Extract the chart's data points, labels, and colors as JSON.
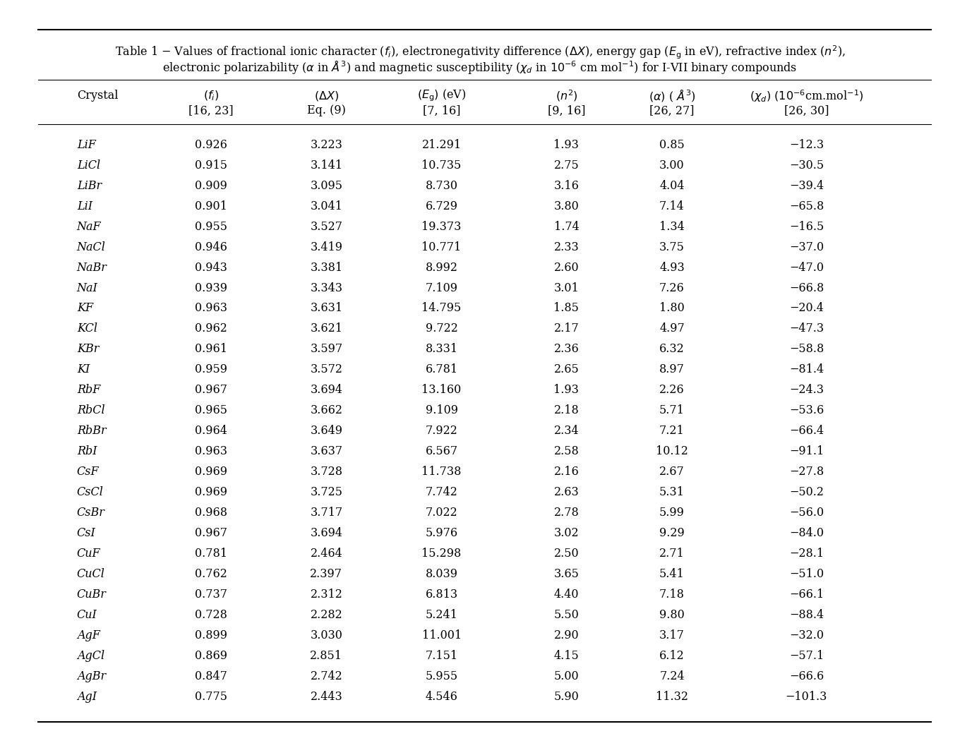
{
  "title_line1": "Table 1 — Values of fractional ionic character (",
  "title_line2": "electronic polarizability (α in Å",
  "bg_color": "#ffffff",
  "border_color": "#000000",
  "columns": [
    "Crystal",
    "(f_i)\n[16, 23]",
    "(ΔX)\nEq. (9)",
    "(E_g) (eV)\n[7, 16]",
    "(n²)\n[9, 16]",
    "(α) ( Å³)\n[26, 27]",
    "(χ_d) (10⁻⁶cm.mol⁻¹)\n[26, 30]"
  ],
  "rows": [
    [
      "LiF",
      "0.926",
      "3.223",
      "21.291",
      "1.93",
      "0.85",
      "−12.3"
    ],
    [
      "LiCl",
      "0.915",
      "3.141",
      "10.735",
      "2.75",
      "3.00",
      "−30.5"
    ],
    [
      "LiBr",
      "0.909",
      "3.095",
      "8.730",
      "3.16",
      "4.04",
      "−39.4"
    ],
    [
      "LiI",
      "0.901",
      "3.041",
      "6.729",
      "3.80",
      "7.14",
      "−65.8"
    ],
    [
      "NaF",
      "0.955",
      "3.527",
      "19.373",
      "1.74",
      "1.34",
      "−16.5"
    ],
    [
      "NaCl",
      "0.946",
      "3.419",
      "10.771",
      "2.33",
      "3.75",
      "−37.0"
    ],
    [
      "NaBr",
      "0.943",
      "3.381",
      "8.992",
      "2.60",
      "4.93",
      "−47.0"
    ],
    [
      "NaI",
      "0.939",
      "3.343",
      "7.109",
      "3.01",
      "7.26",
      "−66.8"
    ],
    [
      "KF",
      "0.963",
      "3.631",
      "14.795",
      "1.85",
      "1.80",
      "−20.4"
    ],
    [
      "KCl",
      "0.962",
      "3.621",
      "9.722",
      "2.17",
      "4.97",
      "−47.3"
    ],
    [
      "KBr",
      "0.961",
      "3.597",
      "8.331",
      "2.36",
      "6.32",
      "−58.8"
    ],
    [
      "KI",
      "0.959",
      "3.572",
      "6.781",
      "2.65",
      "8.97",
      "−81.4"
    ],
    [
      "RbF",
      "0.967",
      "3.694",
      "13.160",
      "1.93",
      "2.26",
      "−24.3"
    ],
    [
      "RbCl",
      "0.965",
      "3.662",
      "9.109",
      "2.18",
      "5.71",
      "−53.6"
    ],
    [
      "RbBr",
      "0.964",
      "3.649",
      "7.922",
      "2.34",
      "7.21",
      "−66.4"
    ],
    [
      "RbI",
      "0.963",
      "3.637",
      "6.567",
      "2.58",
      "10.12",
      "−91.1"
    ],
    [
      "CsF",
      "0.969",
      "3.728",
      "11.738",
      "2.16",
      "2.67",
      "−27.8"
    ],
    [
      "CsCl",
      "0.969",
      "3.725",
      "7.742",
      "2.63",
      "5.31",
      "−50.2"
    ],
    [
      "CsBr",
      "0.968",
      "3.717",
      "7.022",
      "2.78",
      "5.99",
      "−56.0"
    ],
    [
      "CsI",
      "0.967",
      "3.694",
      "5.976",
      "3.02",
      "9.29",
      "−84.0"
    ],
    [
      "CuF",
      "0.781",
      "2.464",
      "15.298",
      "2.50",
      "2.71",
      "−28.1"
    ],
    [
      "CuCl",
      "0.762",
      "2.397",
      "8.039",
      "3.65",
      "5.41",
      "−51.0"
    ],
    [
      "CuBr",
      "0.737",
      "2.312",
      "6.813",
      "4.40",
      "7.18",
      "−66.1"
    ],
    [
      "CuI",
      "0.728",
      "2.282",
      "5.241",
      "5.50",
      "9.80",
      "−88.4"
    ],
    [
      "AgF",
      "0.899",
      "3.030",
      "11.001",
      "2.90",
      "3.17",
      "−32.0"
    ],
    [
      "AgCl",
      "0.869",
      "2.851",
      "7.151",
      "4.15",
      "6.12",
      "−57.1"
    ],
    [
      "AgBr",
      "0.847",
      "2.742",
      "5.955",
      "5.00",
      "7.24",
      "−66.6"
    ],
    [
      "AgI",
      "0.775",
      "2.443",
      "4.546",
      "5.90",
      "11.32",
      "−101.3"
    ]
  ]
}
